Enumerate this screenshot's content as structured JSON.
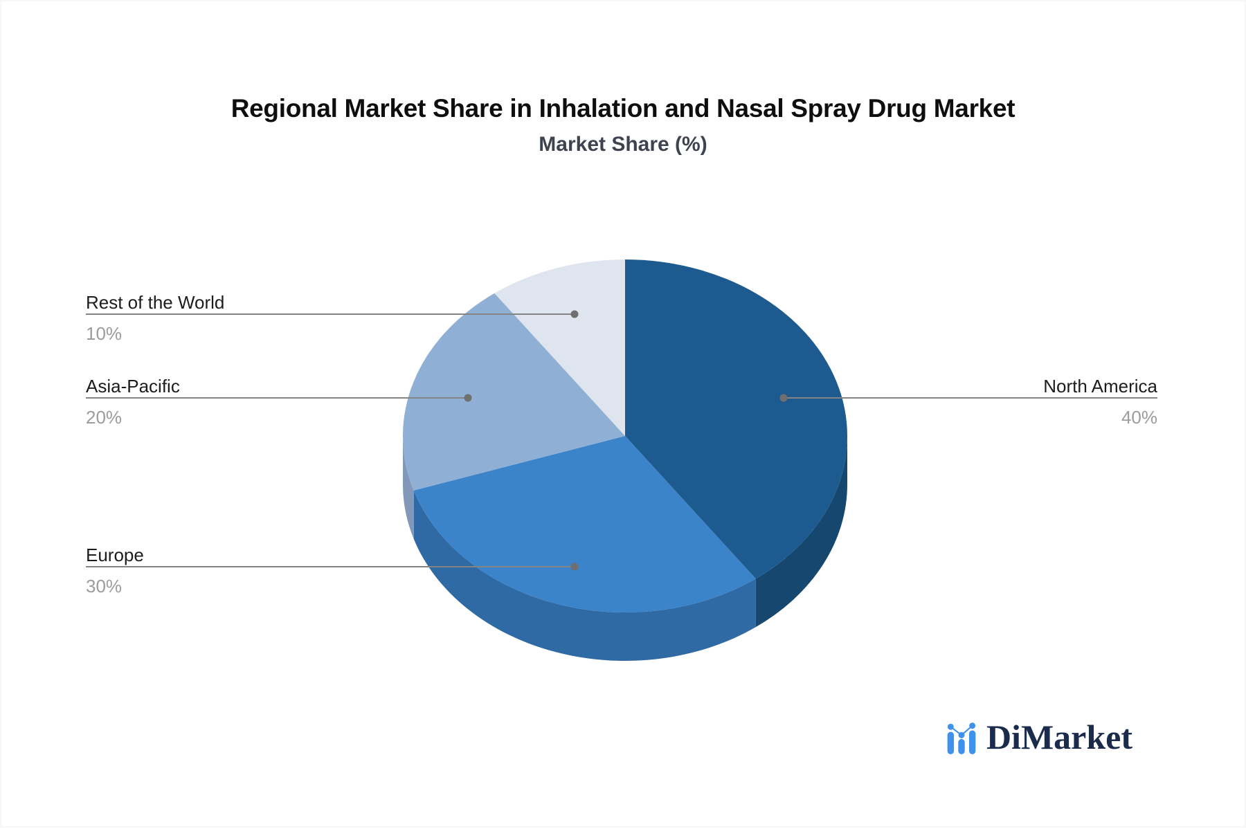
{
  "title": "Regional Market Share in Inhalation and Nasal Spray Drug Market",
  "subtitle": "Market Share (%)",
  "logo": {
    "text": "DiMarket",
    "icon": "bar-sparkline-icon"
  },
  "chart_data": {
    "type": "pie",
    "style": "3d",
    "title": "Regional Market Share in Inhalation and Nasal Spray Drug Market",
    "subtitle": "Market Share (%)",
    "unit": "%",
    "start_angle": "12-oclock",
    "direction": "clockwise",
    "slices": [
      {
        "label": "North America",
        "value": 40,
        "pct_label": "40%",
        "color": "#1d5a8f",
        "side_color": "#16476f"
      },
      {
        "label": "Europe",
        "value": 30,
        "pct_label": "30%",
        "color": "#3b84ca",
        "side_color": "#2f6aa4"
      },
      {
        "label": "Asia-Pacific",
        "value": 20,
        "pct_label": "20%",
        "color": "#8fb0d4",
        "side_color": "#8298b8"
      },
      {
        "label": "Rest of the World",
        "value": 10,
        "pct_label": "10%",
        "color": "#dfe5ef",
        "side_color": "#c8d1e0"
      }
    ],
    "leader_line_color": "#848484",
    "leader_dot_color": "#6f6f6f",
    "label_color": "#1c1c1c",
    "value_color": "#9c9c9c"
  }
}
